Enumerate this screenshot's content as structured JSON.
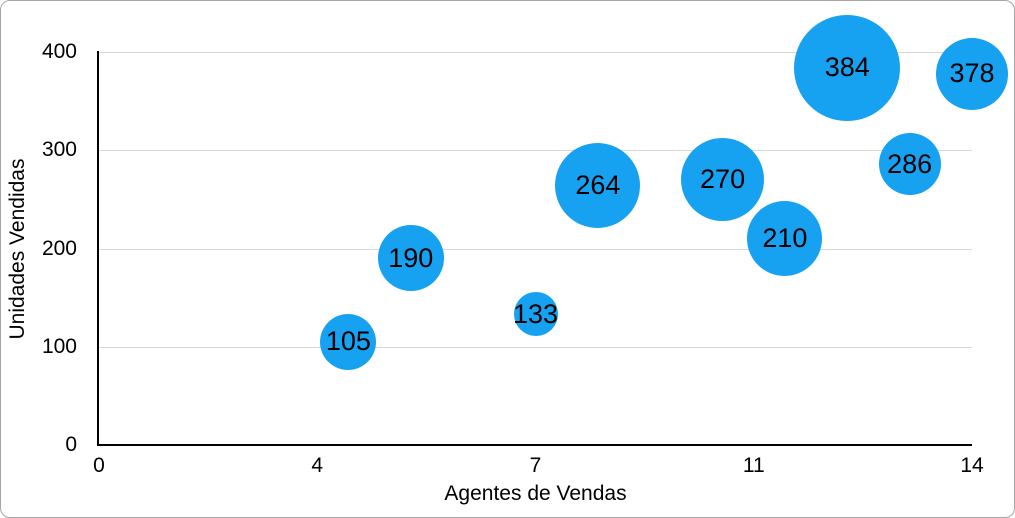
{
  "frame": {
    "background_color": "#ffffff",
    "border_color": "#a6a6a6"
  },
  "chart_data": {
    "type": "scatter",
    "variant": "bubble",
    "title": "",
    "xlabel": "Agentes de Vendas",
    "ylabel": "Unidades Vendidas",
    "xlim": [
      0,
      14
    ],
    "ylim": [
      0,
      400
    ],
    "grid": "horizontal-only",
    "legend_position": "none",
    "x_ticks": [
      {
        "value": 0,
        "label": "0"
      },
      {
        "value": 3.5,
        "label": "4"
      },
      {
        "value": 7,
        "label": "7"
      },
      {
        "value": 10.5,
        "label": "11"
      },
      {
        "value": 14,
        "label": "14"
      }
    ],
    "y_ticks": [
      {
        "value": 0,
        "label": "0"
      },
      {
        "value": 100,
        "label": "100"
      },
      {
        "value": 200,
        "label": "200"
      },
      {
        "value": 300,
        "label": "300"
      },
      {
        "value": 400,
        "label": "400"
      }
    ],
    "bubble_color": "#16a1f1",
    "bubble_label_color": "#000000",
    "axis_line_color": "#000000",
    "gridline_color": "#d8d8d8",
    "points": [
      {
        "x": 4,
        "y": 105,
        "label": "105",
        "radius_px": 28
      },
      {
        "x": 5,
        "y": 190,
        "label": "190",
        "radius_px": 33
      },
      {
        "x": 7,
        "y": 133,
        "label": "133",
        "radius_px": 22
      },
      {
        "x": 8,
        "y": 264,
        "label": "264",
        "radius_px": 42.5
      },
      {
        "x": 10,
        "y": 270,
        "label": "270",
        "radius_px": 41.5
      },
      {
        "x": 11,
        "y": 210,
        "label": "210",
        "radius_px": 37.5
      },
      {
        "x": 12,
        "y": 384,
        "label": "384",
        "radius_px": 53
      },
      {
        "x": 13,
        "y": 286,
        "label": "286",
        "radius_px": 31
      },
      {
        "x": 14,
        "y": 378,
        "label": "378",
        "radius_px": 36
      }
    ]
  }
}
